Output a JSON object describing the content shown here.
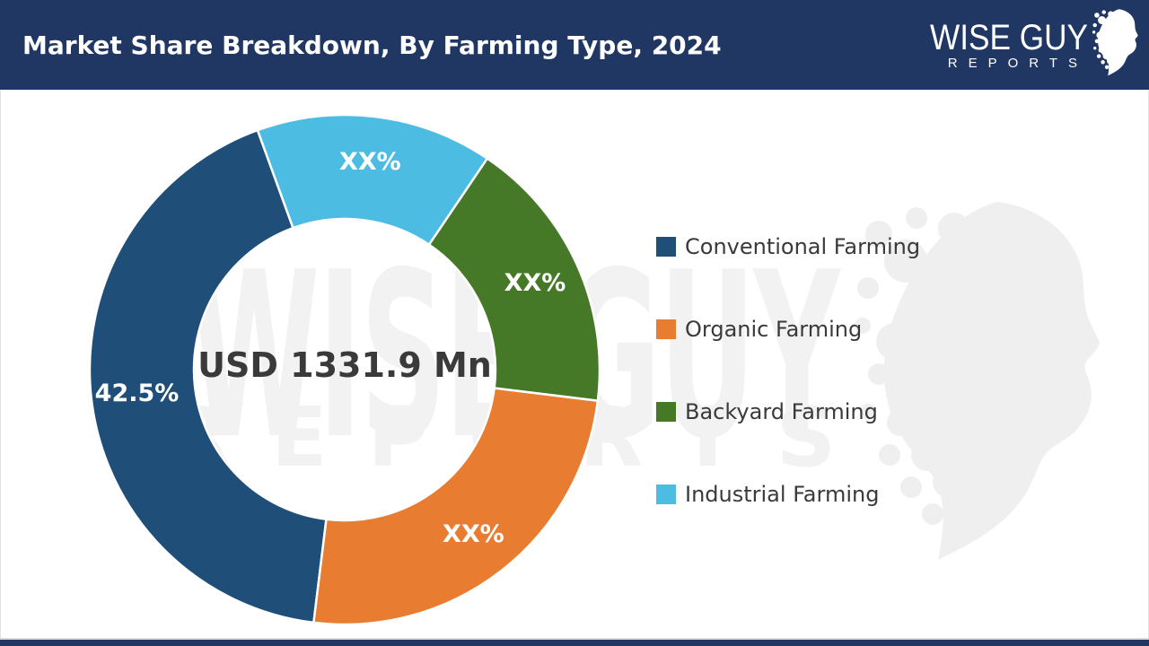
{
  "header": {
    "title": "Market Share Breakdown, By Farming Type, 2024",
    "bg_color": "#203764",
    "logo": {
      "line1": "WISE GUY",
      "line2": "REPORTS"
    }
  },
  "chart_data": {
    "type": "pie",
    "subtype": "donut",
    "title": "Market Share Breakdown, By Farming Type, 2024",
    "center_label": "USD 1331.9 Mn",
    "start_angle_deg": 110,
    "direction": "counterclockwise",
    "inner_radius_ratio": 0.59,
    "legend_position": "right",
    "segments": [
      {
        "name": "Conventional Farming",
        "value_pct": 42.5,
        "label": "42.5%",
        "color": "#1F4E79"
      },
      {
        "name": "Organic Farming",
        "value_pct": 25.0,
        "label": "XX%",
        "color": "#E87D31"
      },
      {
        "name": "Backyard Farming",
        "value_pct": 17.5,
        "label": "XX%",
        "color": "#457927"
      },
      {
        "name": "Industrial Farming",
        "value_pct": 15.0,
        "label": "XX%",
        "color": "#4DBCE3"
      }
    ]
  },
  "watermark": {
    "line1": "WISE GUY",
    "line2": "REPORTS"
  },
  "footer": {
    "bar_color": "#203764"
  },
  "colors": {
    "header_navy": "#203764",
    "text_dark": "#3A3A3A",
    "watermark_gray": "#F2F2F2",
    "separator_gray": "#D9D9D9"
  }
}
